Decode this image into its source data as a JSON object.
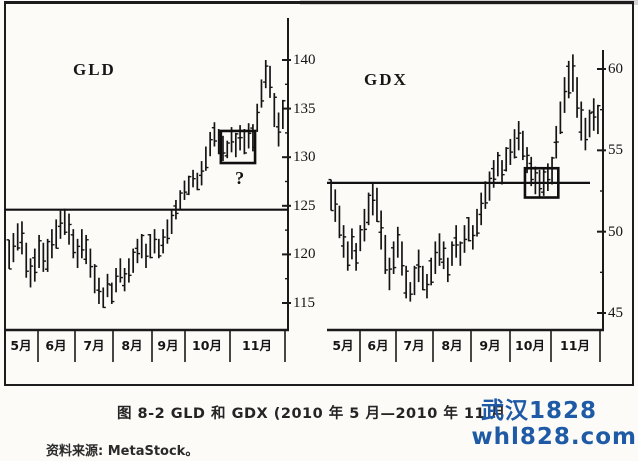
{
  "page": {
    "background": "#fcfbf8",
    "ink": "#191919"
  },
  "caption": {
    "text": "图 8-2  GLD 和 GDX (2010 年 5 月—2010 年 11 月"
  },
  "source": {
    "text": "资料来源: MetaStock。"
  },
  "watermark": {
    "line1": "武汉1828",
    "line2": "whl828.com",
    "color": "#1e5aa5"
  },
  "chart_data": [
    {
      "type": "ohlc-bar",
      "title": "GLD",
      "x_categories": [
        "5月",
        "6月",
        "7月",
        "8月",
        "9月",
        "10月",
        "11月"
      ],
      "y_ticks": [
        140,
        135,
        130,
        125,
        120,
        115
      ],
      "y_minor_ticks": [
        137.5,
        132.5,
        127.5,
        122.5,
        117.5
      ],
      "ylim": [
        113.5,
        142.5
      ],
      "grid": false,
      "resistance_line_price": 124.6,
      "annotations": {
        "box": {
          "bar_start": 50,
          "bar_end": 57,
          "price_top": 132.7,
          "price_bottom": 129.4
        },
        "question_mark": {
          "bar": 54,
          "price": 128.0,
          "text": "?"
        }
      },
      "bars_high_low": [
        [
          121.5,
          118.5
        ],
        [
          122.2,
          119.2
        ],
        [
          123.2,
          120.4
        ],
        [
          123.4,
          120.0
        ],
        [
          121.2,
          117.6
        ],
        [
          119.6,
          116.6
        ],
        [
          120.6,
          117.2
        ],
        [
          122.0,
          118.6
        ],
        [
          121.2,
          118.2
        ],
        [
          121.6,
          118.2
        ],
        [
          122.6,
          119.6
        ],
        [
          123.6,
          120.6
        ],
        [
          124.5,
          121.6
        ],
        [
          124.7,
          122.0
        ],
        [
          124.2,
          121.0
        ],
        [
          122.6,
          119.6
        ],
        [
          121.6,
          118.6
        ],
        [
          122.6,
          119.6
        ],
        [
          122.0,
          119.0
        ],
        [
          120.6,
          117.6
        ],
        [
          119.0,
          116.0
        ],
        [
          117.6,
          114.9
        ],
        [
          116.6,
          114.5
        ],
        [
          118.0,
          115.6
        ],
        [
          117.1,
          114.9
        ],
        [
          118.6,
          116.1
        ],
        [
          119.6,
          117.1
        ],
        [
          118.6,
          116.2
        ],
        [
          119.6,
          117.1
        ],
        [
          120.6,
          118.1
        ],
        [
          121.6,
          119.1
        ],
        [
          122.1,
          119.6
        ],
        [
          121.1,
          118.6
        ],
        [
          122.1,
          119.6
        ],
        [
          122.6,
          120.1
        ],
        [
          121.6,
          119.6
        ],
        [
          122.6,
          120.1
        ],
        [
          123.6,
          121.1
        ],
        [
          124.6,
          122.1
        ],
        [
          125.6,
          123.6
        ],
        [
          126.6,
          124.6
        ],
        [
          127.6,
          125.6
        ],
        [
          128.1,
          126.1
        ],
        [
          128.7,
          126.9
        ],
        [
          128.4,
          126.6
        ],
        [
          129.6,
          127.1
        ],
        [
          131.1,
          128.6
        ],
        [
          132.6,
          130.1
        ],
        [
          133.6,
          131.1
        ],
        [
          132.9,
          130.3
        ],
        [
          132.2,
          129.6
        ],
        [
          131.7,
          129.9
        ],
        [
          133.1,
          130.5
        ],
        [
          132.5,
          130.0
        ],
        [
          133.3,
          130.7
        ],
        [
          132.9,
          130.3
        ],
        [
          133.5,
          130.9
        ],
        [
          133.4,
          130.6
        ],
        [
          135.5,
          132.6
        ],
        [
          138.0,
          135.1
        ],
        [
          140.0,
          137.1
        ],
        [
          139.4,
          136.1
        ],
        [
          136.6,
          133.1
        ],
        [
          134.6,
          131.1
        ],
        [
          135.9,
          132.9
        ]
      ]
    },
    {
      "type": "ohlc-bar",
      "title": "GDX",
      "x_categories": [
        "5月",
        "6月",
        "7月",
        "8月",
        "9月",
        "10月",
        "11月"
      ],
      "y_ticks": [
        60,
        55,
        50,
        45
      ],
      "y_minor_ticks": [
        57.5,
        52.5,
        47.5
      ],
      "ylim": [
        44,
        62
      ],
      "grid": false,
      "resistance_line_price": 53.0,
      "annotations": {
        "box": {
          "bar_start": 47,
          "bar_end": 54,
          "price_top": 53.9,
          "price_bottom": 52.1
        }
      },
      "bars_high_low": [
        [
          53.2,
          51.3
        ],
        [
          52.6,
          50.6
        ],
        [
          51.6,
          49.6
        ],
        [
          50.4,
          48.4
        ],
        [
          49.4,
          47.6
        ],
        [
          50.2,
          48.3
        ],
        [
          49.3,
          47.6
        ],
        [
          50.4,
          48.8
        ],
        [
          51.4,
          49.4
        ],
        [
          52.4,
          50.4
        ],
        [
          53.0,
          51.0
        ],
        [
          52.7,
          50.6
        ],
        [
          51.3,
          48.9
        ],
        [
          49.8,
          47.4
        ],
        [
          48.4,
          46.4
        ],
        [
          49.4,
          47.4
        ],
        [
          50.3,
          48.4
        ],
        [
          49.4,
          47.3
        ],
        [
          47.9,
          45.9
        ],
        [
          46.9,
          45.7
        ],
        [
          47.9,
          46.1
        ],
        [
          48.9,
          46.9
        ],
        [
          47.9,
          46.4
        ],
        [
          47.4,
          45.9
        ],
        [
          48.4,
          46.7
        ],
        [
          49.4,
          47.4
        ],
        [
          49.9,
          47.9
        ],
        [
          49.4,
          47.7
        ],
        [
          48.4,
          46.9
        ],
        [
          49.4,
          47.9
        ],
        [
          50.4,
          48.4
        ],
        [
          49.4,
          47.9
        ],
        [
          50.4,
          48.7
        ],
        [
          50.9,
          49.4
        ],
        [
          50.4,
          48.9
        ],
        [
          51.4,
          49.7
        ],
        [
          52.4,
          50.4
        ],
        [
          53.1,
          51.4
        ],
        [
          53.7,
          51.9
        ],
        [
          54.4,
          52.7
        ],
        [
          54.9,
          53.4
        ],
        [
          54.4,
          52.9
        ],
        [
          55.2,
          53.7
        ],
        [
          55.7,
          54.1
        ],
        [
          56.3,
          54.5
        ],
        [
          56.8,
          55.0
        ],
        [
          56.2,
          54.4
        ],
        [
          55.2,
          53.6
        ],
        [
          54.6,
          52.8
        ],
        [
          54.0,
          52.3
        ],
        [
          53.8,
          52.1
        ],
        [
          53.9,
          52.2
        ],
        [
          54.2,
          52.5
        ],
        [
          54.6,
          52.9
        ],
        [
          56.5,
          54.5
        ],
        [
          58.0,
          56.0
        ],
        [
          59.5,
          57.3
        ],
        [
          60.5,
          58.2
        ],
        [
          60.9,
          58.6
        ],
        [
          59.5,
          57.0
        ],
        [
          58.0,
          55.6
        ],
        [
          57.0,
          55.0
        ],
        [
          57.5,
          55.8
        ],
        [
          58.2,
          56.2
        ],
        [
          57.8,
          56.0
        ]
      ]
    }
  ]
}
